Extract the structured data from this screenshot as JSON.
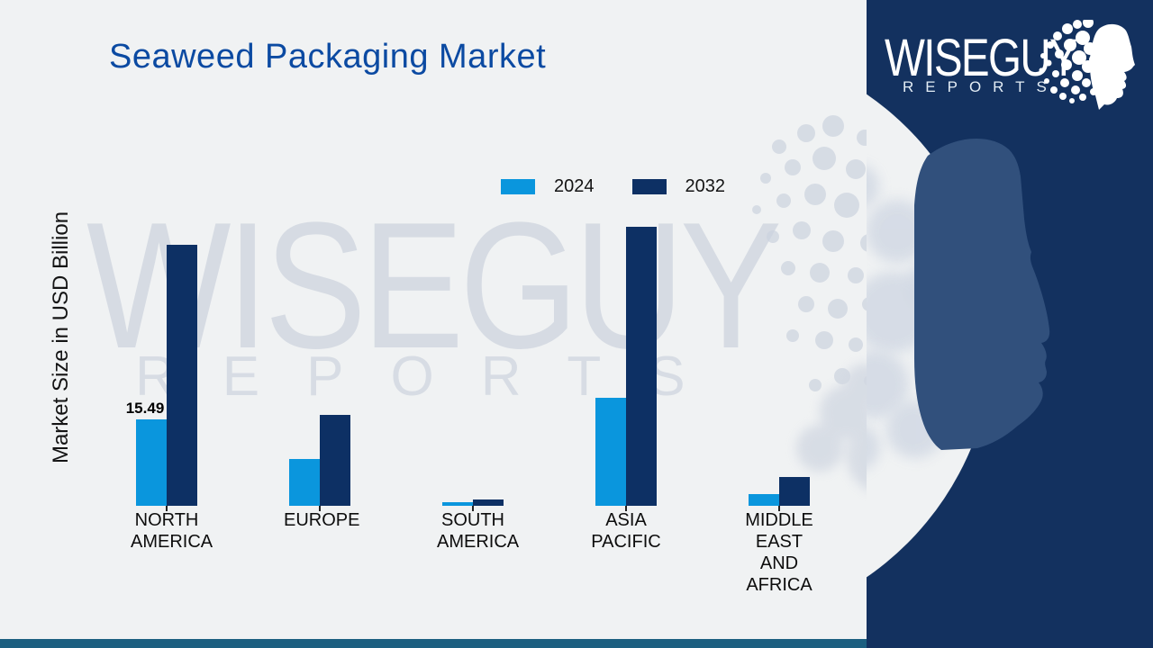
{
  "page": {
    "background": "#f0f2f3",
    "bottom_bar_color": "#1c5f80"
  },
  "header": {
    "title": "Seaweed Packaging Market",
    "title_color": "#0b4aa2"
  },
  "chart_data": {
    "type": "bar",
    "title": "Seaweed Packaging Market",
    "xlabel": "",
    "ylabel": "Market Size in USD Billion",
    "units": "USD Billion",
    "categories": [
      "NORTH AMERICA",
      "EUROPE",
      "SOUTH AMERICA",
      "ASIA PACIFIC",
      "MIDDLE EAST AND AFRICA"
    ],
    "series": [
      {
        "name": "2024",
        "color": "#0a96dd",
        "values": [
          15.49,
          8.4,
          0.65,
          19.4,
          2.1
        ]
      },
      {
        "name": "2032",
        "color": "#0d3064",
        "values": [
          46.8,
          16.4,
          1.2,
          50.1,
          5.2
        ]
      }
    ],
    "bar_value_labels": [
      {
        "series": "2024",
        "category": "NORTH AMERICA",
        "text": "15.49"
      }
    ],
    "legend_position": "top-center",
    "grid": false,
    "ylim": [
      0,
      55
    ]
  },
  "legend": {
    "items": [
      {
        "label": "2024",
        "color": "#0a96dd"
      },
      {
        "label": "2032",
        "color": "#0d3064"
      }
    ]
  },
  "watermark": {
    "line1": "WISEGUY",
    "line2": "REPORTS"
  },
  "brand_logo": {
    "line1": "WISEGUY",
    "line2": "REPORTS",
    "panel_color": "#13315f",
    "text_color": "#ffffff"
  }
}
